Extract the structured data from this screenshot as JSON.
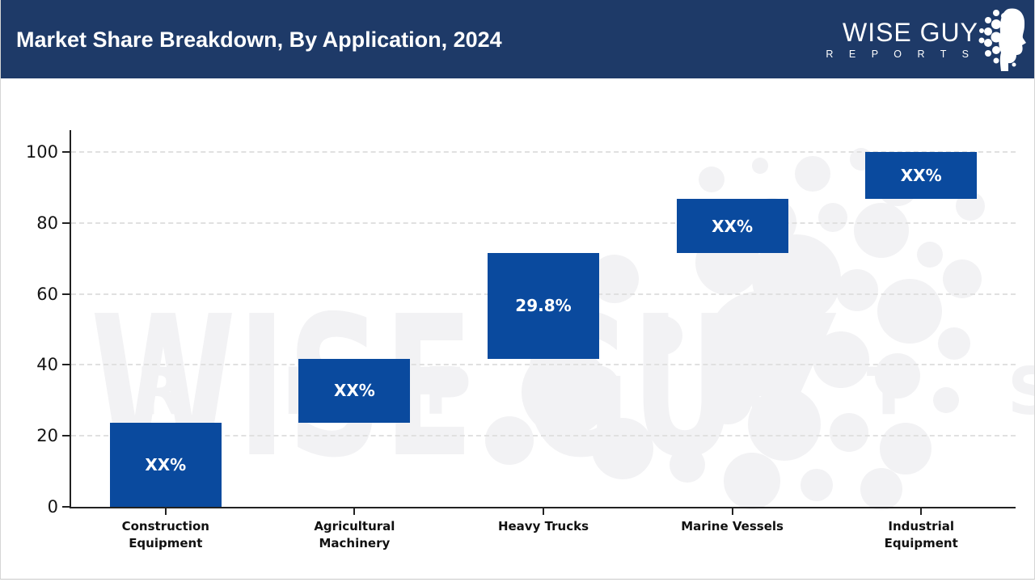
{
  "header": {
    "title": "Market Share Breakdown, By Application, 2024",
    "logo": {
      "name": "WISE GUY",
      "sub": "R E P O R T S"
    }
  },
  "watermark": {
    "name": "WISE GUY",
    "sub": "R E P O R T S"
  },
  "colors": {
    "header_bg": "#1e3a68",
    "bar": "#0a4a9e",
    "bar_label": "#ffffff",
    "grid": "#e0e0e0",
    "axis": "#222222",
    "watermark": "#f2f2f4"
  },
  "chart_data": {
    "type": "bar",
    "variant": "waterfall",
    "title": "Market Share Breakdown, By Application, 2024",
    "categories": [
      "Construction Equipment",
      "Agricultural Machinery",
      "Heavy Trucks",
      "Marine Vessels",
      "Industrial Equipment"
    ],
    "category_lines": [
      [
        "Construction",
        "Equipment"
      ],
      [
        "Agricultural",
        "Machinery"
      ],
      [
        "Heavy Trucks"
      ],
      [
        "Marine Vessels"
      ],
      [
        "Industrial",
        "Equipment"
      ]
    ],
    "segments": [
      {
        "category": "Construction Equipment",
        "start": 0,
        "end": 23.8,
        "label": "XX%"
      },
      {
        "category": "Agricultural Machinery",
        "start": 23.8,
        "end": 41.8,
        "label": "XX%"
      },
      {
        "category": "Heavy Trucks",
        "start": 41.8,
        "end": 71.6,
        "label": "29.8%"
      },
      {
        "category": "Marine Vessels",
        "start": 71.6,
        "end": 86.7,
        "label": "XX%"
      },
      {
        "category": "Industrial Equipment",
        "start": 86.7,
        "end": 100,
        "label": "XX%"
      }
    ],
    "yticks": [
      0,
      20,
      40,
      60,
      80,
      100
    ],
    "ylim": [
      0,
      105
    ],
    "xlabel": "",
    "ylabel": "",
    "grid": "horizontal-dashed",
    "legend": "none"
  }
}
